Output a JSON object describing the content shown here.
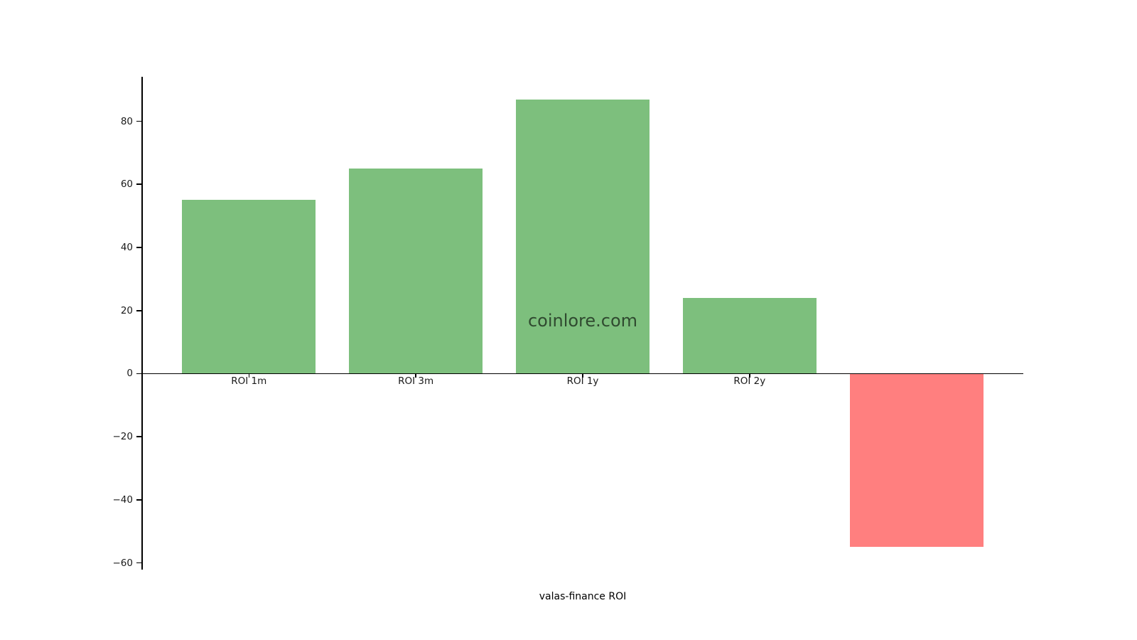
{
  "chart_data": {
    "type": "bar",
    "title": "valas-finance ROI",
    "watermark": "coinlore.com",
    "categories": [
      "ROI 1m",
      "ROI 3m",
      "ROI 1y",
      "ROI 2y",
      ""
    ],
    "values": [
      55,
      65,
      87,
      24,
      -55
    ],
    "yticks": [
      80,
      60,
      40,
      20,
      0,
      -20,
      -40,
      -60
    ],
    "ylim": [
      -62.1,
      94.1
    ],
    "xlim": [
      -0.64,
      4.64
    ],
    "bar_width": 0.8,
    "positive_color": "#7dbf7d",
    "negative_color": "#ff7f7f",
    "axis_color": "#000000",
    "tick_text_color": "#1a1a1a",
    "watermark_color": "rgba(0,0,0,0.62)",
    "background": "#ffffff",
    "grid": false,
    "legend": null,
    "xlabel": "valas-finance ROI",
    "ylabel": ""
  }
}
